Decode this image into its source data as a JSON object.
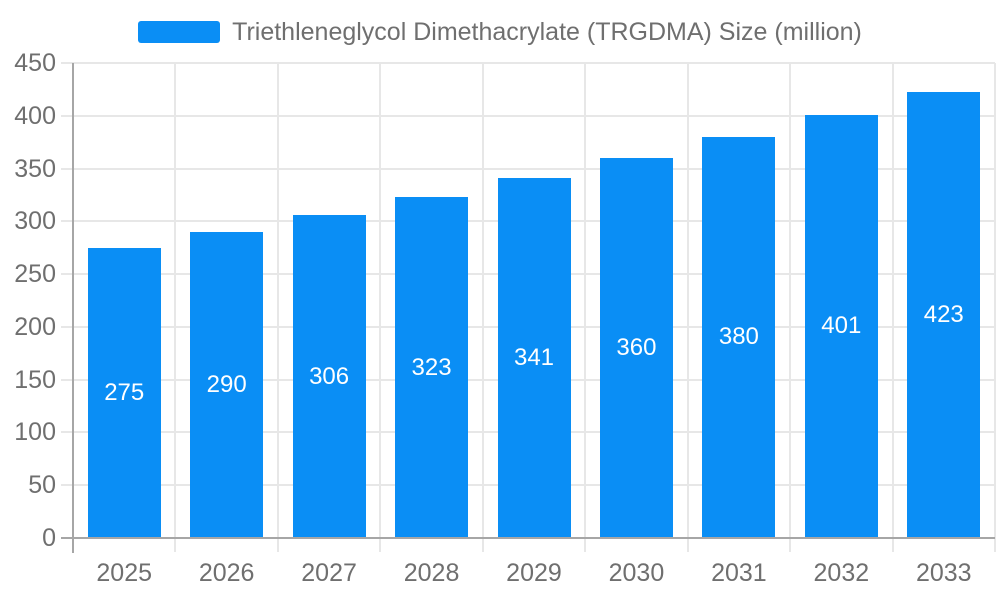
{
  "chart_data": {
    "type": "bar",
    "title": "Triethleneglycol Dimethacrylate (TRGDMA) Size (million)",
    "categories": [
      "2025",
      "2026",
      "2027",
      "2028",
      "2029",
      "2030",
      "2031",
      "2032",
      "2033"
    ],
    "values": [
      275,
      290,
      306,
      323,
      341,
      360,
      380,
      401,
      423
    ],
    "series": [
      {
        "name": "Triethleneglycol Dimethacrylate (TRGDMA) Size (million)",
        "values": [
          275,
          290,
          306,
          323,
          341,
          360,
          380,
          401,
          423
        ]
      }
    ],
    "xlabel": "",
    "ylabel": "",
    "ylim": [
      0,
      450
    ],
    "ytick_step": 50,
    "ytick_labels": [
      "0",
      "50",
      "100",
      "150",
      "200",
      "250",
      "300",
      "350",
      "400",
      "450"
    ],
    "grid": true,
    "legend_position": "top",
    "bar_value_labels_position": "inside-center",
    "style": {
      "bar_color": "#0a8ef5",
      "bar_value_label_color": "#ffffff",
      "legend_swatch_color": "#0a8ef5",
      "axis_line_color": "#a6a6a6",
      "gridline_color": "#e7e7e7",
      "axis_text_color": "#6f6f6f",
      "background_color": "#ffffff"
    }
  }
}
